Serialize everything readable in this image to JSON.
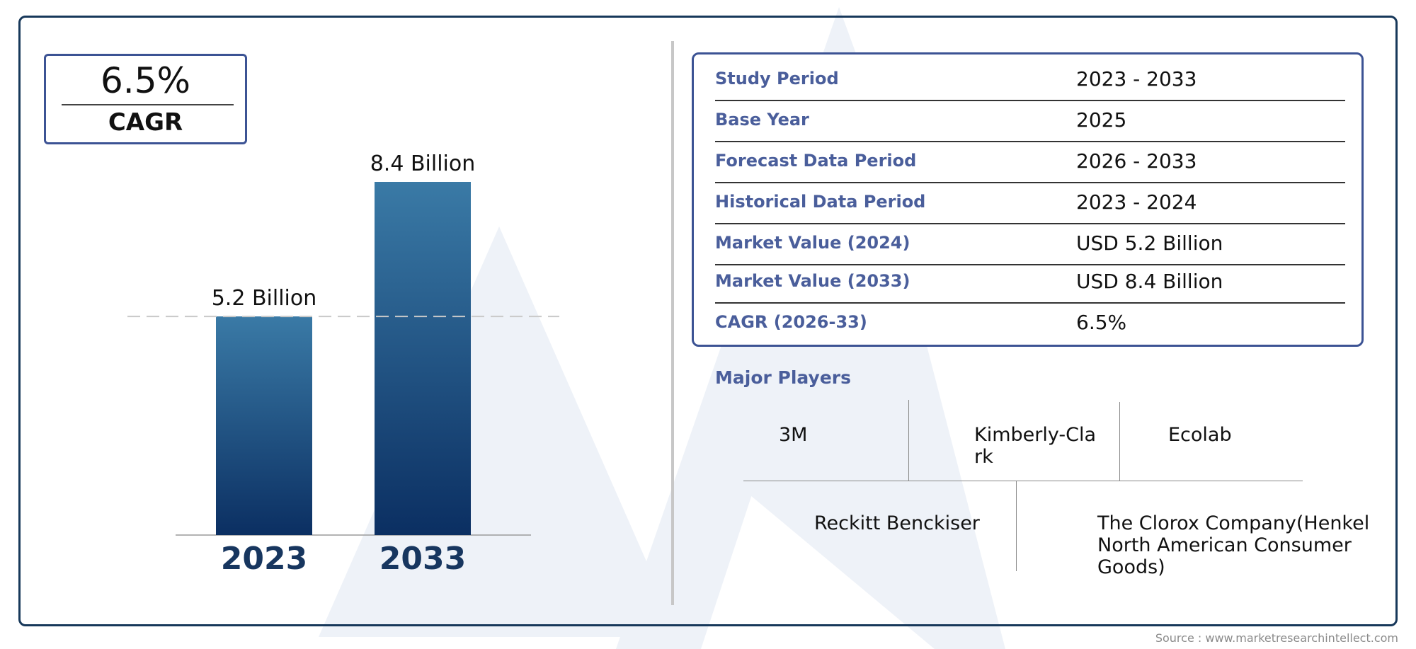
{
  "cagr": {
    "value": "6.5%",
    "label": "CAGR"
  },
  "chart_data": {
    "type": "bar",
    "categories": [
      "2023",
      "2033"
    ],
    "values": [
      5.2,
      8.4
    ],
    "data_labels": [
      "5.2 Billion",
      "8.4 Billion"
    ],
    "unit": "Billion",
    "ylim": [
      0,
      8.4
    ],
    "reference_line": 5.2,
    "colors": {
      "bar_top": "#3a7aa6",
      "bar_bottom": "#0b2f62",
      "category_text": "#17365f"
    }
  },
  "info_table": [
    {
      "key": "Study Period",
      "value": "2023 - 2033"
    },
    {
      "key": "Base Year",
      "value": "2025"
    },
    {
      "key": "Forecast Data Period",
      "value": "2026 - 2033"
    },
    {
      "key": "Historical Data Period",
      "value": "2023 - 2024"
    },
    {
      "key": "Market Value (2024)",
      "value": "USD 5.2 Billion"
    },
    {
      "key": "Market Value (2033)",
      "value": "USD 8.4 Billion"
    },
    {
      "key": "CAGR (2026-33)",
      "value": "6.5%"
    }
  ],
  "players": {
    "title": "Major Players",
    "items": [
      "3M",
      "Kimberly-Cla\nrk",
      "Ecolab",
      "Reckitt Benckiser",
      "The Clorox Company(Henkel\nNorth American Consumer\nGoods)"
    ]
  },
  "source": "Source : www.marketresearchintellect.com",
  "colors": {
    "accent": "#4a5e9b",
    "frame": "#17385a",
    "box_border": "#3c5394"
  }
}
